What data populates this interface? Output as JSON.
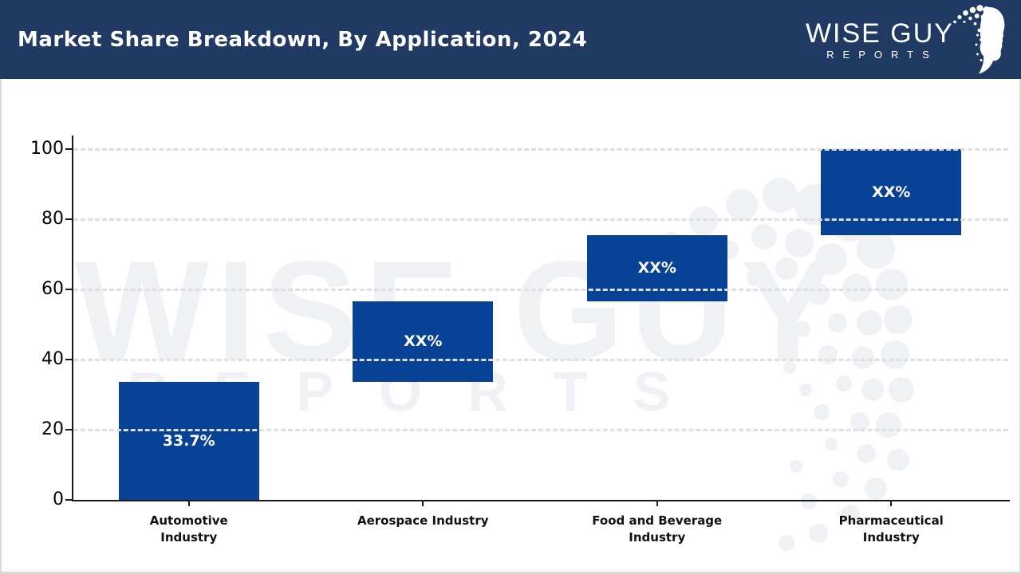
{
  "header": {
    "title": "Market Share Breakdown, By Application, 2024",
    "brand": {
      "name": "WISE GUY",
      "sub": "REPORTS"
    }
  },
  "watermark": {
    "line1": "WISE GUY",
    "line2": "REPORTS"
  },
  "colors": {
    "header_bg": "#213a64",
    "bar_fill": "#084296",
    "grid": "#dfdfdf",
    "axis": "#1a1a1a",
    "watermark": "#eff1f4",
    "bar_label_text": "#ffffff"
  },
  "chart_data": {
    "type": "bar",
    "variant": "waterfall",
    "title": "Market Share Breakdown, By Application, 2024",
    "xlabel": "",
    "ylabel": "",
    "ylim": [
      0,
      104
    ],
    "yticks": [
      0,
      20,
      40,
      60,
      80,
      100
    ],
    "grid": "horizontal dashed",
    "legend": null,
    "categories": [
      "Automotive Industry",
      "Aerospace Industry",
      "Food and Beverage Industry",
      "Pharmaceutical Industry"
    ],
    "category_display": [
      "Automotive\nIndustry",
      "Aerospace Industry",
      "Food and Beverage\nIndustry",
      "Pharmaceutical\nIndustry"
    ],
    "segments": [
      {
        "category": "Automotive Industry",
        "start": 0,
        "end": 33.7,
        "label": "33.7%"
      },
      {
        "category": "Aerospace Industry",
        "start": 33.7,
        "end": 56.7,
        "label": "XX%"
      },
      {
        "category": "Food and Beverage Industry",
        "start": 56.7,
        "end": 75.4,
        "label": "XX%"
      },
      {
        "category": "Pharmaceutical Industry",
        "start": 75.4,
        "end": 100,
        "label": "XX%"
      }
    ]
  }
}
